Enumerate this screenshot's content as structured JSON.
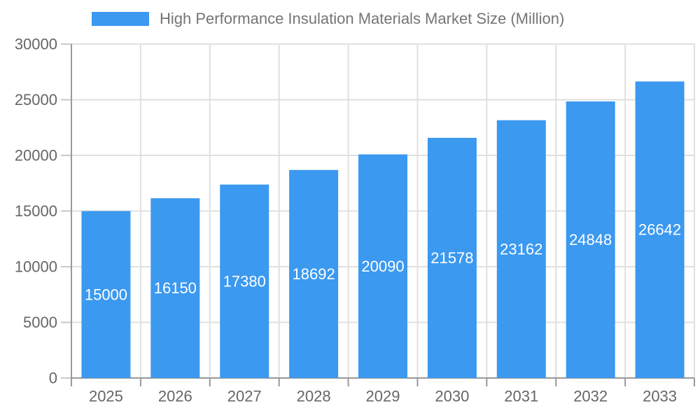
{
  "legend": {
    "label": "High Performance Insulation Materials Market Size (Million)"
  },
  "chart_data": {
    "type": "bar",
    "title": "High Performance Insulation Materials Market Size (Million)",
    "categories": [
      "2025",
      "2026",
      "2027",
      "2028",
      "2029",
      "2030",
      "2031",
      "2032",
      "2033"
    ],
    "values": [
      15000,
      16150,
      17380,
      18692,
      20090,
      21578,
      23162,
      24848,
      26642
    ],
    "xlabel": "",
    "ylabel": "",
    "ylim": [
      0,
      30000
    ],
    "yticks": [
      0,
      5000,
      10000,
      15000,
      20000,
      25000,
      30000
    ],
    "grid": true,
    "legend_position": "top",
    "value_labels": "inside-center",
    "colors": {
      "bar": "#3B99F0",
      "grid_line": "#E0E0E0",
      "axis_line": "#999999",
      "y_tick": "#C8C8C8",
      "x_tick": "#999999",
      "tick_label": "#666666",
      "legend_text": "#757575",
      "value_label": "#FFFFFF",
      "background": "#FFFFFF"
    }
  }
}
